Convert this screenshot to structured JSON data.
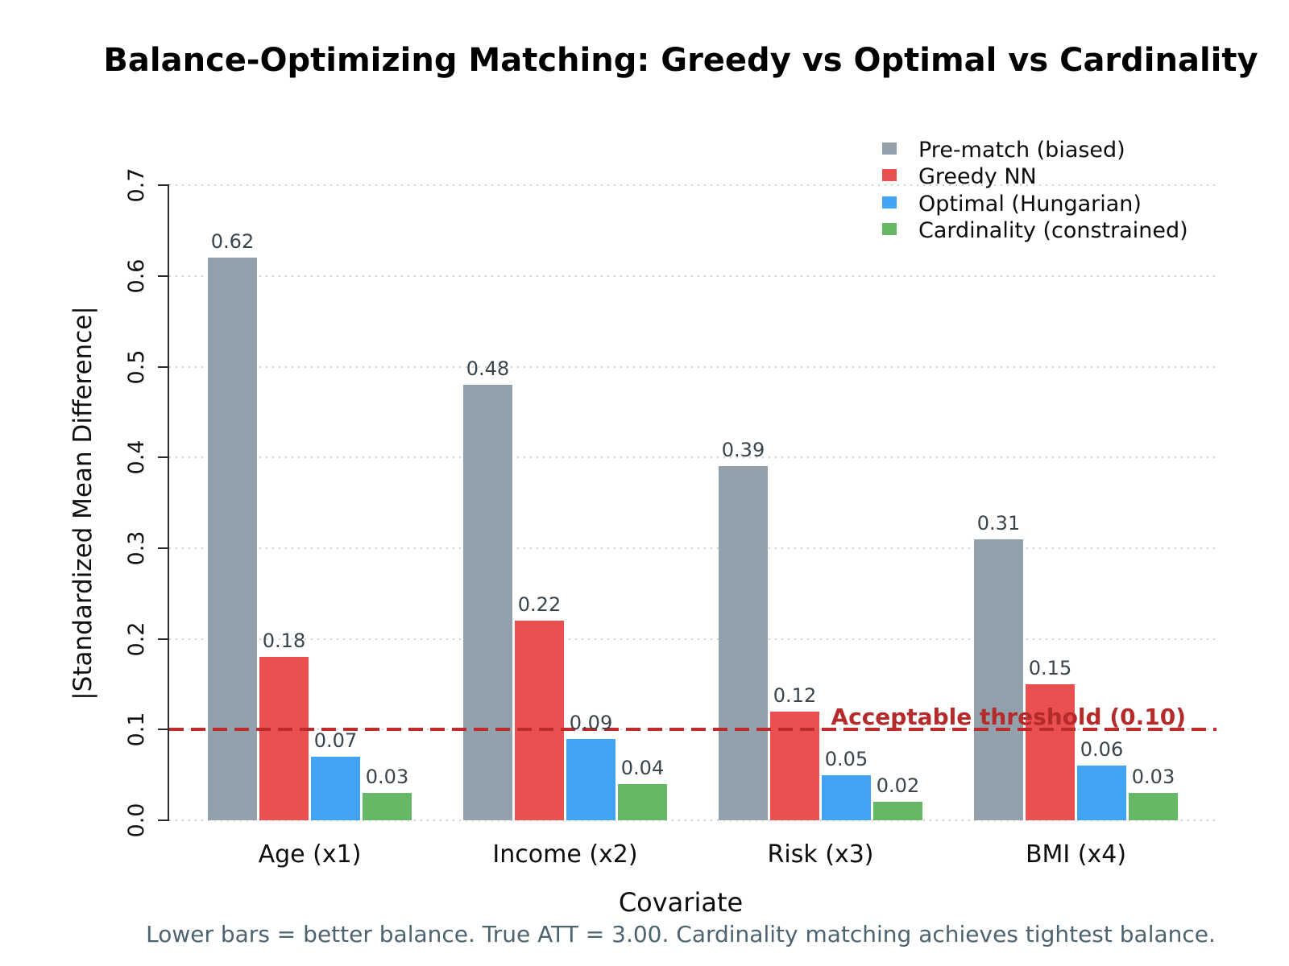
{
  "chart_data": {
    "type": "bar",
    "title": "Balance-Optimizing Matching: Greedy vs Optimal vs Cardinality",
    "categories": [
      "Age (x1)",
      "Income (x2)",
      "Risk (x3)",
      "BMI (x4)"
    ],
    "series": [
      {
        "name": "Pre-match (biased)",
        "color": "#92a1ab",
        "values": [
          0.62,
          0.48,
          0.39,
          0.31
        ]
      },
      {
        "name": "Greedy NN",
        "color": "#ea5050",
        "values": [
          0.18,
          0.22,
          0.12,
          0.15
        ]
      },
      {
        "name": "Optimal (Hungarian)",
        "color": "#41a3f3",
        "values": [
          0.07,
          0.09,
          0.05,
          0.06
        ]
      },
      {
        "name": "Cardinality (constrained)",
        "color": "#65b866",
        "values": [
          0.03,
          0.04,
          0.02,
          0.03
        ]
      }
    ],
    "xlabel": "Covariate",
    "ylabel": "|Standardized Mean Difference|",
    "ylim": [
      0,
      0.7
    ],
    "ytick_labels": [
      "0.0",
      "0.1",
      "0.2",
      "0.3",
      "0.4",
      "0.5",
      "0.6",
      "0.7"
    ],
    "grid": "horizontal-dotted",
    "grid_color": "#ccd2d6",
    "legend_position": "upper-right",
    "bar_value_labels": true,
    "value_label_color": "#39444c",
    "threshold": {
      "value": 0.1,
      "label": "Acceptable threshold (0.10)",
      "color": "#bd2c2c",
      "style": "dashed"
    },
    "footnote": "Lower bars = better balance. True ATT = 3.00. Cardinality matching achieves tightest balance.",
    "footnote_color": "#4e6370"
  }
}
